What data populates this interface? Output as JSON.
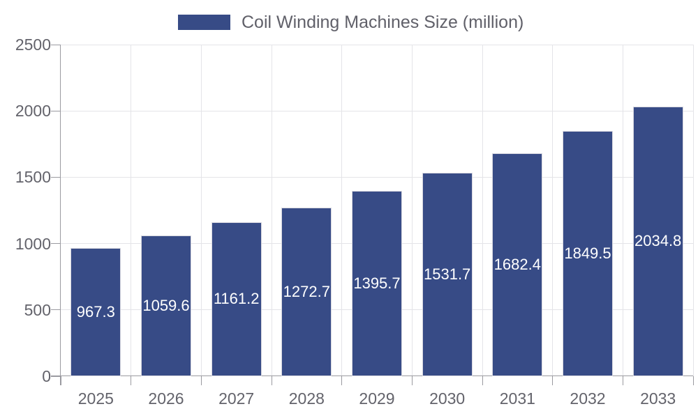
{
  "legend": {
    "label": "Coil Winding Machines Size (million)"
  },
  "chart_data": {
    "type": "bar",
    "title": "Coil Winding Machines Size (million)",
    "categories": [
      "2025",
      "2026",
      "2027",
      "2028",
      "2029",
      "2030",
      "2031",
      "2032",
      "2033"
    ],
    "values": [
      967.3,
      1059.6,
      1161.2,
      1272.7,
      1395.7,
      1531.7,
      1682.4,
      1849.5,
      2034.8
    ],
    "series": [
      {
        "name": "Coil Winding Machines Size (million)",
        "values": [
          967.3,
          1059.6,
          1161.2,
          1272.7,
          1395.7,
          1531.7,
          1682.4,
          1849.5,
          2034.8
        ]
      }
    ],
    "xlabel": "",
    "ylabel": "",
    "ylim": [
      0,
      2500
    ],
    "ytick_step": 500,
    "yticks": [
      0,
      500,
      1000,
      1500,
      2000,
      2500
    ],
    "grid": true,
    "legend_position": "top",
    "value_label_position": "inside-center",
    "colors": {
      "bar": "#374B86",
      "bar_stroke": "#d7d7df",
      "grid": "#e4e4e8",
      "axis": "#9a9aa0",
      "text": "#63636b",
      "value_label": "#ffffff",
      "background": "#ffffff"
    }
  }
}
